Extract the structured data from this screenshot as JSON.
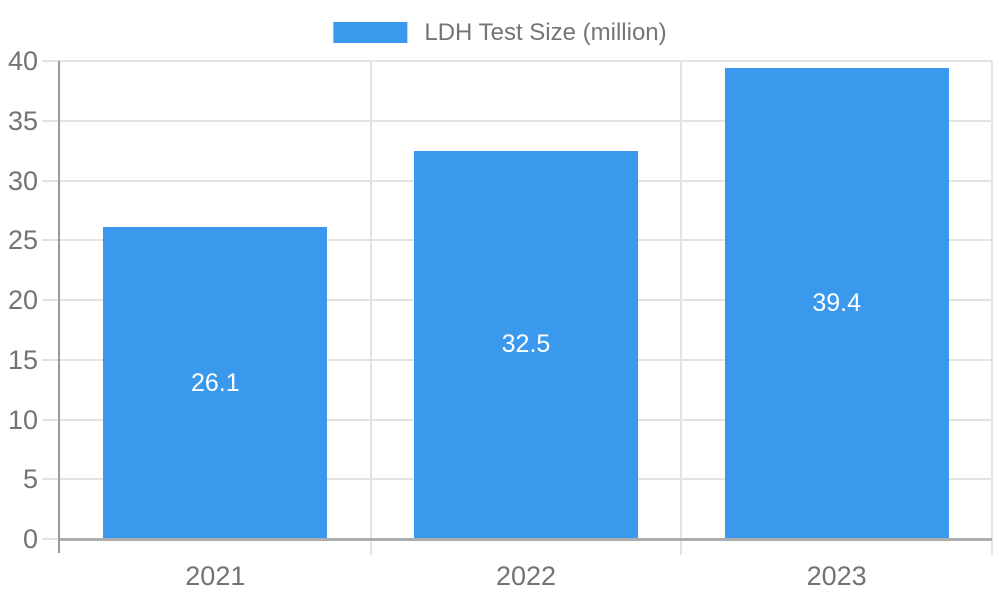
{
  "chart_data": {
    "type": "bar",
    "title": "",
    "xlabel": "",
    "ylabel": "",
    "legend": {
      "label": "LDH Test Size (million)",
      "position": "top-center"
    },
    "categories": [
      "2021",
      "2022",
      "2023"
    ],
    "series": [
      {
        "name": "LDH Test Size (million)",
        "values": [
          26.1,
          32.5,
          39.4
        ]
      }
    ],
    "value_labels": [
      "26.1",
      "32.5",
      "39.4"
    ],
    "ylim": [
      0,
      40
    ],
    "yticks": [
      0,
      5,
      10,
      15,
      20,
      25,
      30,
      35,
      40
    ],
    "grid": {
      "horizontal": true,
      "vertical": true
    },
    "colors": {
      "bar": "#3A99EC",
      "value_label": "#FFFFFF",
      "axis_label": "#737373",
      "legend_text": "#757575",
      "gridline": "#E3E3E3",
      "y_axis_line": "#999999",
      "x_axis_line": "#ADADAD"
    }
  }
}
